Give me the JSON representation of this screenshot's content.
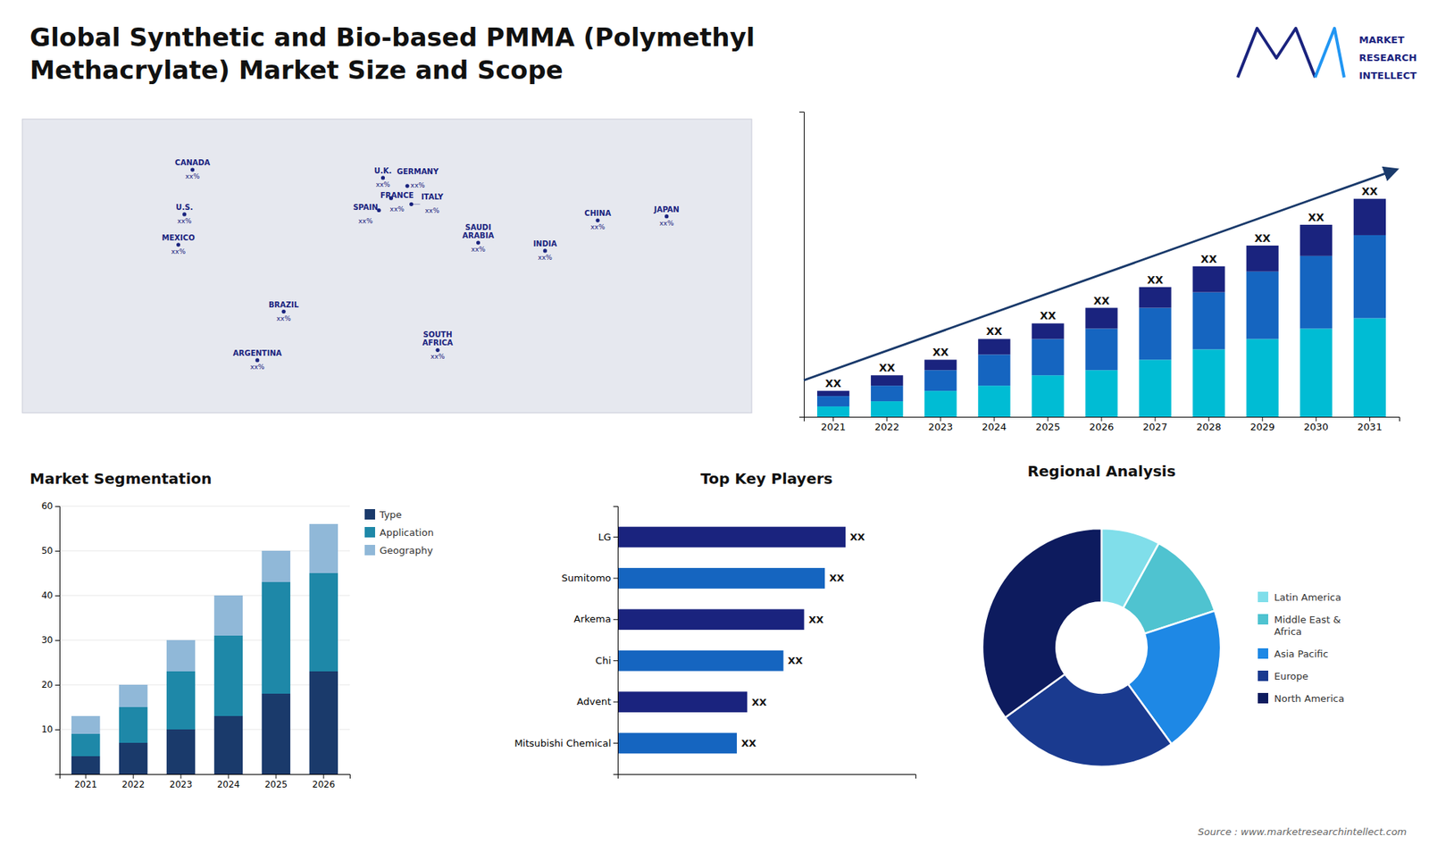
{
  "chart_data": [
    {
      "type": "map",
      "title": "Global Synthetic and Bio-based PMMA (Polymethyl\nMethacrylate) Market Size and Scope",
      "categories": [
        "U.S.",
        "CANADA",
        "MEXICO",
        "BRAZIL",
        "ARGENTINA",
        "U.K.",
        "FRANCE",
        "SPAIN",
        "GERMANY",
        "ITALY",
        "SAUDI\nARABIA",
        "SOUTH\nAFRICA",
        "CHINA",
        "INDIA",
        "JAPAN"
      ],
      "x": [
        -100,
        -96,
        -103,
        -51,
        -64,
        -2,
        2,
        -4,
        10,
        12,
        45,
        25,
        104,
        78,
        138
      ],
      "values": [
        38,
        60,
        23,
        -10,
        -34,
        56,
        46,
        40,
        52,
        43,
        24,
        -29,
        35,
        20,
        37
      ],
      "annotations": [
        "xx%",
        "xx%",
        "xx%",
        "xx%",
        "xx%",
        "xx%",
        "xx%",
        "xx%",
        "xx%",
        "xx%",
        "xx%",
        "xx%",
        "xx%",
        "xx%",
        "xx%"
      ],
      "xlim": [
        -180,
        180
      ],
      "ylim": [
        -60,
        85
      ],
      "tick_labels": false
    },
    {
      "type": "bar",
      "subtitle": "MARKET\nRESEARCH\nINTELLECT",
      "categories": [
        "2021",
        "2022",
        "2023",
        "2024",
        "2025",
        "2026",
        "2027",
        "2028",
        "2029",
        "2030",
        "2031"
      ],
      "series": [
        {
          "color": "#00bcd4",
          "values": [
            2,
            3,
            5,
            6,
            8,
            9,
            11,
            13,
            15,
            17,
            19
          ]
        },
        {
          "color": "#1565c0",
          "values": [
            2,
            3,
            4,
            6,
            7,
            8,
            10,
            11,
            13,
            14,
            16
          ]
        },
        {
          "color": "#1a237e",
          "values": [
            1,
            2,
            2,
            3,
            3,
            4,
            4,
            5,
            5,
            6,
            7
          ]
        }
      ],
      "stacked": true,
      "ylim": [
        0,
        58.8
      ],
      "annotations": [
        "XX",
        "XX",
        "XX",
        "XX",
        "XX",
        "XX",
        "XX",
        "XX",
        "XX",
        "XX",
        "XX"
      ],
      "tick_labels": "x"
    },
    {
      "type": "bar",
      "title": "Market Segmentation",
      "categories": [
        "2021",
        "2022",
        "2023",
        "2024",
        "2025",
        "2026"
      ],
      "series": [
        {
          "name": "Type",
          "color": "#1a3a6b",
          "values": [
            4,
            7,
            10,
            13,
            18,
            23
          ]
        },
        {
          "name": "Application",
          "color": "#1e88a8",
          "values": [
            5,
            8,
            13,
            18,
            25,
            22
          ]
        },
        {
          "name": "Geography",
          "color": "#90b8d8",
          "values": [
            4,
            5,
            7,
            9,
            7,
            11
          ]
        }
      ],
      "stacked": true,
      "ylim": [
        0,
        60
      ],
      "yticks": [
        10,
        20,
        30,
        40,
        50,
        60
      ],
      "grid": true,
      "legend": "right"
    },
    {
      "type": "bar",
      "orientation": "horizontal",
      "title": "Top Key Players",
      "categories": [
        "LG",
        "Sumitomo",
        "Arkema",
        "Chi",
        "Advent",
        "Mitsubishi Chemical"
      ],
      "values": [
        88,
        80,
        72,
        64,
        50,
        46
      ],
      "colors": [
        "#1a237e",
        "#1565c0",
        "#1a237e",
        "#1565c0",
        "#1a237e",
        "#1565c0"
      ],
      "xlim": [
        0,
        115
      ],
      "annotations": [
        "XX",
        "XX",
        "XX",
        "XX",
        "XX",
        "XX"
      ],
      "tick_labels": "y"
    },
    {
      "type": "pie",
      "title": "Regional Analysis",
      "subtitle": "Source : www.marketresearchintellect.com",
      "categories": [
        "Latin America",
        "Middle East &\nAfrica",
        "Asia Pacific",
        "Europe",
        "North America"
      ],
      "values": [
        8,
        12,
        20,
        25,
        35
      ],
      "colors": [
        "#80deea",
        "#4fc3d0",
        "#1e88e5",
        "#1a3a8f",
        "#0d1b5e"
      ],
      "legend": "right"
    }
  ]
}
